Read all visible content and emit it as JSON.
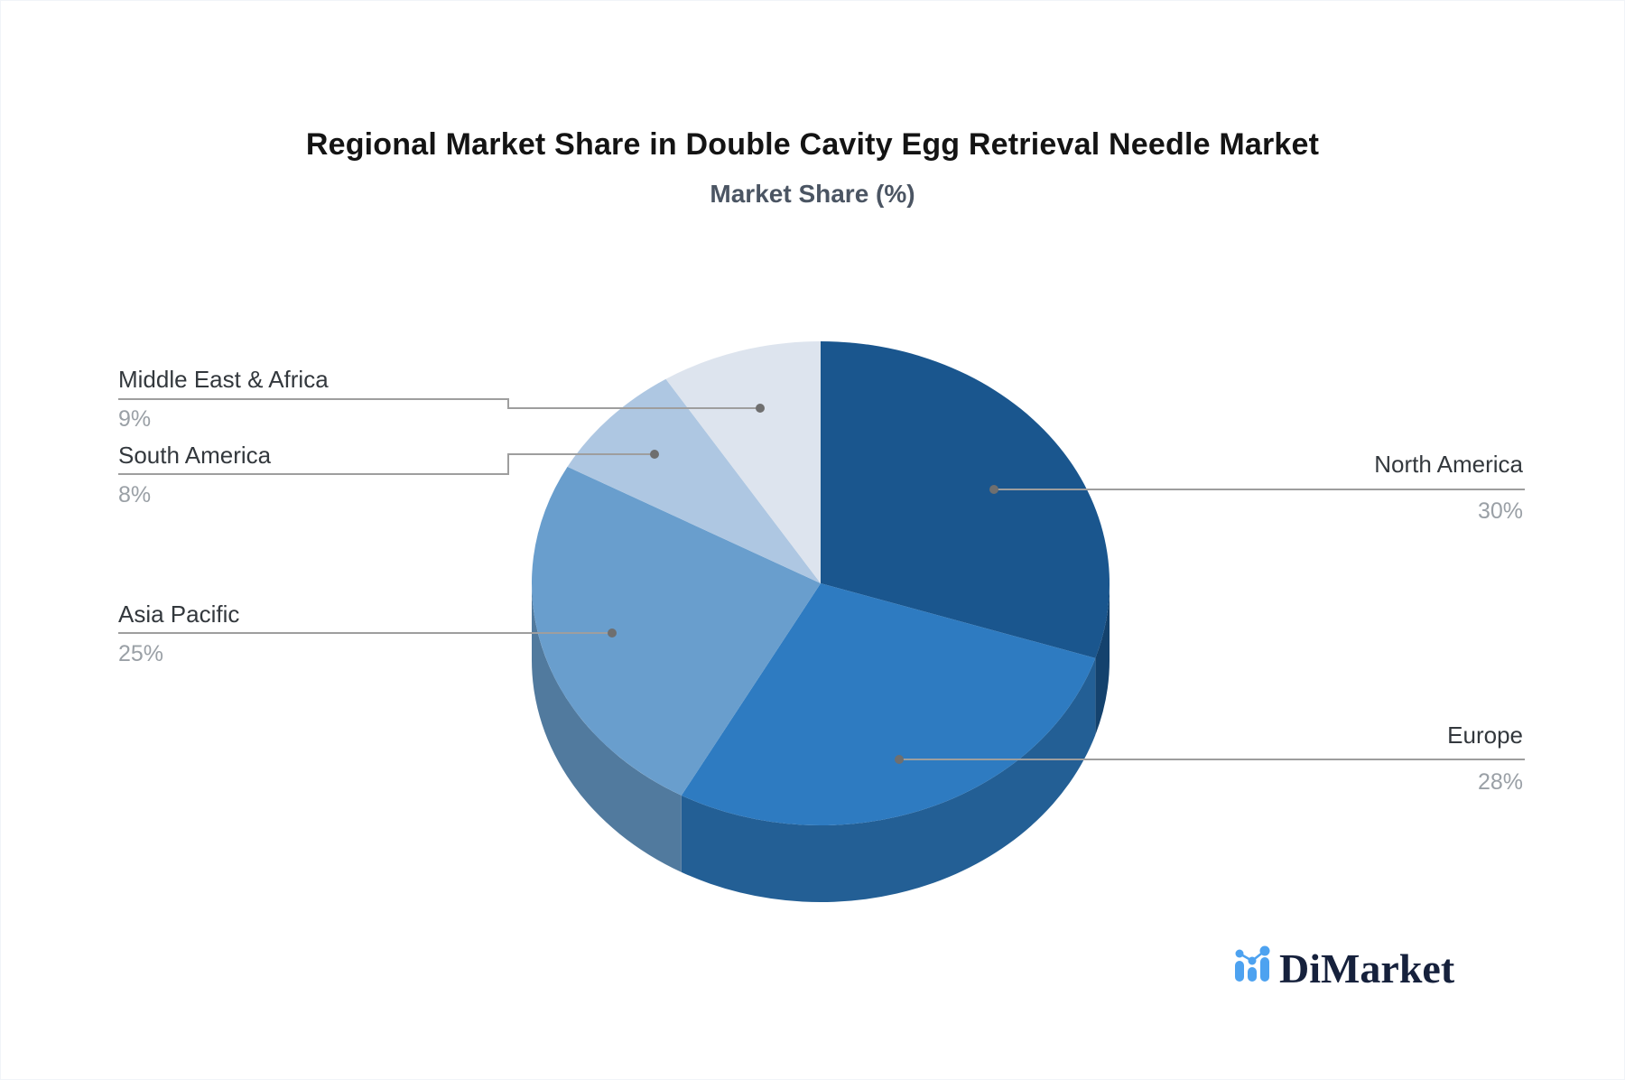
{
  "chart_data": {
    "type": "pie",
    "title": "Regional Market Share in Double Cavity Egg Retrieval Needle Market",
    "subtitle": "Market Share (%)",
    "unit": "%",
    "effect_3d": true,
    "direction": "clockwise",
    "start_angle_deg": 0,
    "legend_position": "none",
    "categories": [
      "North America",
      "Europe",
      "Asia Pacific",
      "South America",
      "Middle East & Africa"
    ],
    "values": [
      30,
      28,
      25,
      8,
      9
    ],
    "slices": [
      {
        "name": "North America",
        "value": 30,
        "label": "30%",
        "color": "#1a568e",
        "label_side": "right"
      },
      {
        "name": "Europe",
        "value": 28,
        "label": "28%",
        "color": "#2e7bc1",
        "label_side": "right"
      },
      {
        "name": "Asia Pacific",
        "value": 25,
        "label": "25%",
        "color": "#699ecd",
        "label_side": "left"
      },
      {
        "name": "South America",
        "value": 8,
        "label": "8%",
        "color": "#aec7e2",
        "label_side": "left"
      },
      {
        "name": "Middle East & Africa",
        "value": 9,
        "label": "9%",
        "color": "#dde4ee",
        "label_side": "left"
      }
    ]
  },
  "branding": {
    "logo_text": "DiMarket",
    "logo_icon": "bar-line-chart-icon",
    "logo_text_color": "#16213c",
    "logo_icon_color": "#4da2f0"
  },
  "colors": {
    "background": "#ffffff",
    "title_text": "#141414",
    "subtitle_text": "#4b5563",
    "label_text": "#33383d",
    "value_text": "#9aa0a6",
    "leader_line": "#9e9e9e",
    "leader_dot": "#6f6f6f"
  }
}
